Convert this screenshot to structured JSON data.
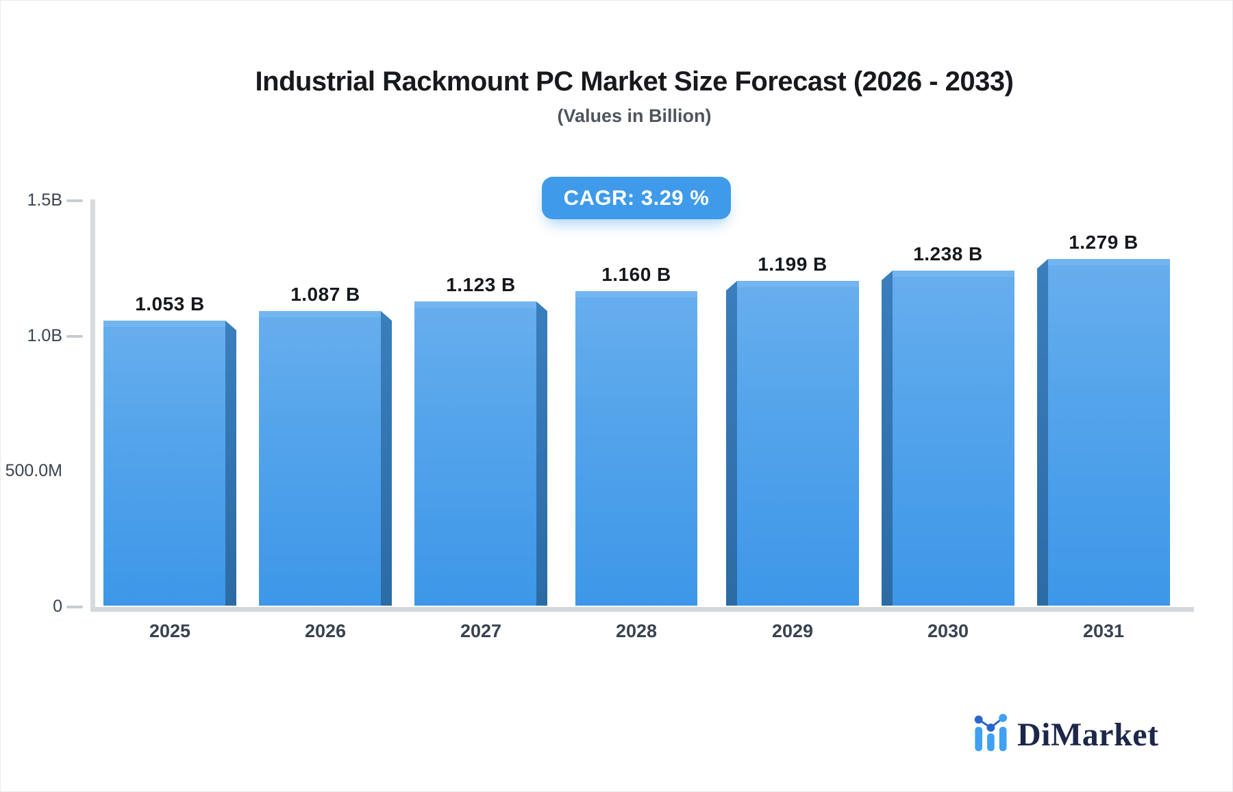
{
  "header": {
    "title": "Industrial Rackmount PC Market Size Forecast (2026 - 2033)",
    "subtitle": "(Values in Billion)"
  },
  "badge": {
    "label": "CAGR: 3.29 %",
    "background_color": "#3f9be9",
    "text_color": "#ffffff"
  },
  "chart_data": {
    "type": "bar",
    "title": "Industrial Rackmount PC Market Size Forecast (2026 - 2033)",
    "subtitle": "(Values in Billion)",
    "categories": [
      "2025",
      "2026",
      "2027",
      "2028",
      "2029",
      "2030",
      "2031"
    ],
    "values": [
      1.053,
      1.087,
      1.123,
      1.16,
      1.199,
      1.238,
      1.279
    ],
    "value_labels": [
      "1.053 B",
      "1.087 B",
      "1.123 B",
      "1.160 B",
      "1.199 B",
      "1.238 B",
      "1.279 B"
    ],
    "unit": "Billion",
    "xlabel": "",
    "ylabel": "",
    "ylim": [
      0,
      1.5
    ],
    "yticks": [
      {
        "label": "1.5B",
        "value": 1.5,
        "dash": true
      },
      {
        "label": "1.0B",
        "value": 1.0,
        "dash": true
      },
      {
        "label": "500.0M",
        "value": 0.5,
        "dash": false
      },
      {
        "label": "0",
        "value": 0,
        "dash": true
      }
    ],
    "grid": false,
    "legend": false,
    "bar_face_top_color": "#68aeee",
    "bar_face_bottom_color": "#3d97e8",
    "bar_side_color": "#2f6fac",
    "style": "3d-perspective-bars"
  },
  "logo": {
    "text": "DiMarket",
    "icon": "bar-chart-with-dots-icon",
    "text_color": "#1c2749",
    "icon_bar_color": "#3fa0f4",
    "icon_dot_color": "#2b66ca"
  }
}
